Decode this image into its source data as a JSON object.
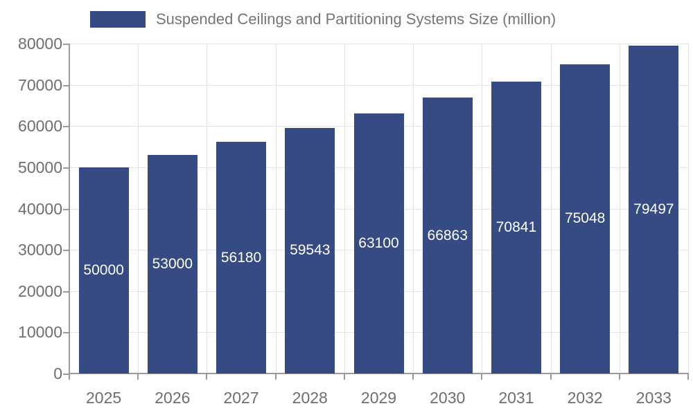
{
  "legend": {
    "label": "Suspended Ceilings and Partitioning Systems Size (million)"
  },
  "chart_data": {
    "type": "bar",
    "title": "Suspended Ceilings and Partitioning Systems Size (million)",
    "categories": [
      "2025",
      "2026",
      "2027",
      "2028",
      "2029",
      "2030",
      "2031",
      "2032",
      "2033"
    ],
    "values": [
      50000,
      53000,
      56180,
      59543,
      63100,
      66863,
      70841,
      75048,
      79497
    ],
    "value_labels": [
      "50000",
      "53000",
      "56180",
      "59543",
      "63100",
      "66863",
      "70841",
      "75048",
      "79497"
    ],
    "xlabel": "",
    "ylabel": "",
    "ylim": [
      0,
      80000
    ],
    "ytick_step": 10000,
    "ytick_labels": [
      "0",
      "10000",
      "20000",
      "30000",
      "40000",
      "50000",
      "60000",
      "70000",
      "80000"
    ],
    "grid": true,
    "legend_position": "top",
    "value_label_position": "inside-center",
    "colors": {
      "bar": "#364a84",
      "value_text": "#ffffff",
      "axis_line": "#9a9a9a",
      "gridline": "#e3e3e3",
      "axis_text": "#6e6e6e",
      "legend_text": "#757575",
      "background": "#ffffff"
    }
  }
}
